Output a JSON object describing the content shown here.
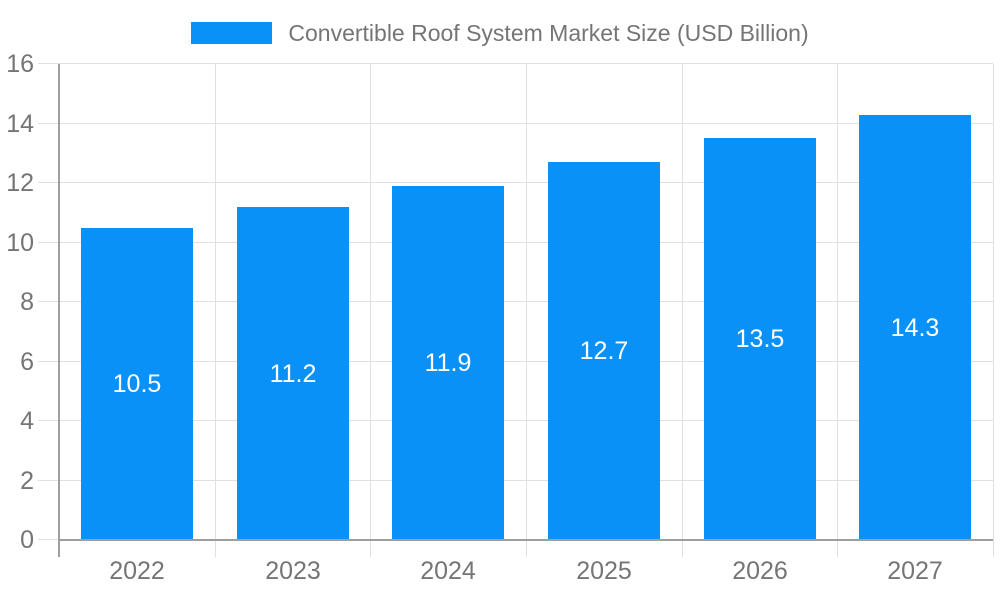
{
  "chart_data": {
    "type": "bar",
    "title": "Convertible Roof System Market Size (USD Billion)",
    "categories": [
      "2022",
      "2023",
      "2024",
      "2025",
      "2026",
      "2027"
    ],
    "values": [
      10.5,
      11.2,
      11.9,
      12.7,
      13.5,
      14.3
    ],
    "value_labels": [
      "10.5",
      "11.2",
      "11.9",
      "12.7",
      "13.5",
      "14.3"
    ],
    "xlabel": "",
    "ylabel": "",
    "ylim": [
      0,
      16
    ],
    "yticks": [
      0,
      2,
      4,
      6,
      8,
      10,
      12,
      14,
      16
    ],
    "grid": true,
    "legend_position": "top-center",
    "colors": {
      "bar": "#0991f8",
      "value_label": "#ffffff",
      "axis_text": "#757575",
      "grid_line": "#e0e0e0",
      "axis_line": "#9e9e9e",
      "background": "#ffffff"
    }
  }
}
